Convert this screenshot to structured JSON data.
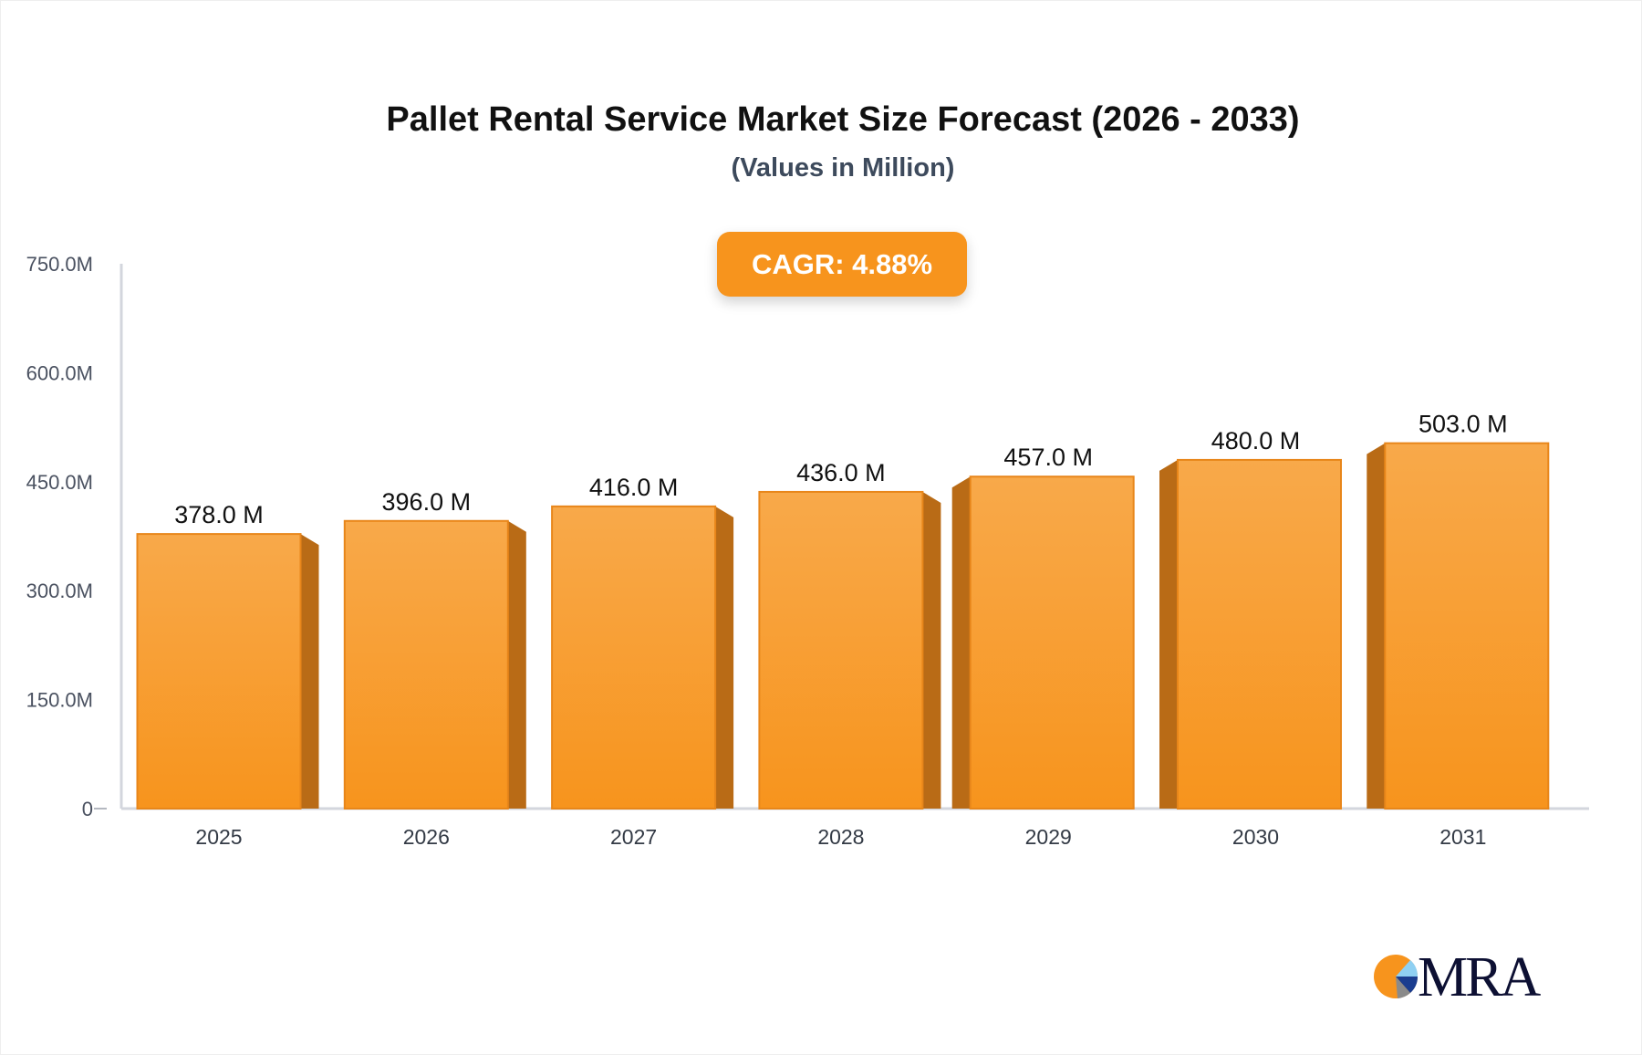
{
  "chart_data": {
    "type": "bar",
    "title": "Pallet Rental Service Market Size Forecast (2026 - 2033)",
    "subtitle": "(Values in Million)",
    "annotation": "CAGR: 4.88%",
    "categories": [
      "2025",
      "2026",
      "2027",
      "2028",
      "2029",
      "2030",
      "2031"
    ],
    "values": [
      378.0,
      396.0,
      416.0,
      436.0,
      457.0,
      480.0,
      503.0
    ],
    "data_labels": [
      "378.0 M",
      "396.0 M",
      "416.0 M",
      "436.0 M",
      "457.0 M",
      "480.0 M",
      "503.0 M"
    ],
    "ylim": [
      0,
      750
    ],
    "yticks": [
      0,
      150,
      300,
      450,
      600,
      750
    ],
    "ytick_labels": [
      "0",
      "150.0M",
      "300.0M",
      "450.0M",
      "600.0M",
      "750.0M"
    ],
    "xlabel": "",
    "ylabel": "",
    "grid": false,
    "colors": {
      "bar_top": "#f8a94a",
      "bar_bottom": "#f7941d",
      "bar_side": "#b96b16",
      "axis": "#d3d6dd",
      "cagr_bg": "#f7941d"
    }
  },
  "logo": {
    "text": "MRA"
  }
}
